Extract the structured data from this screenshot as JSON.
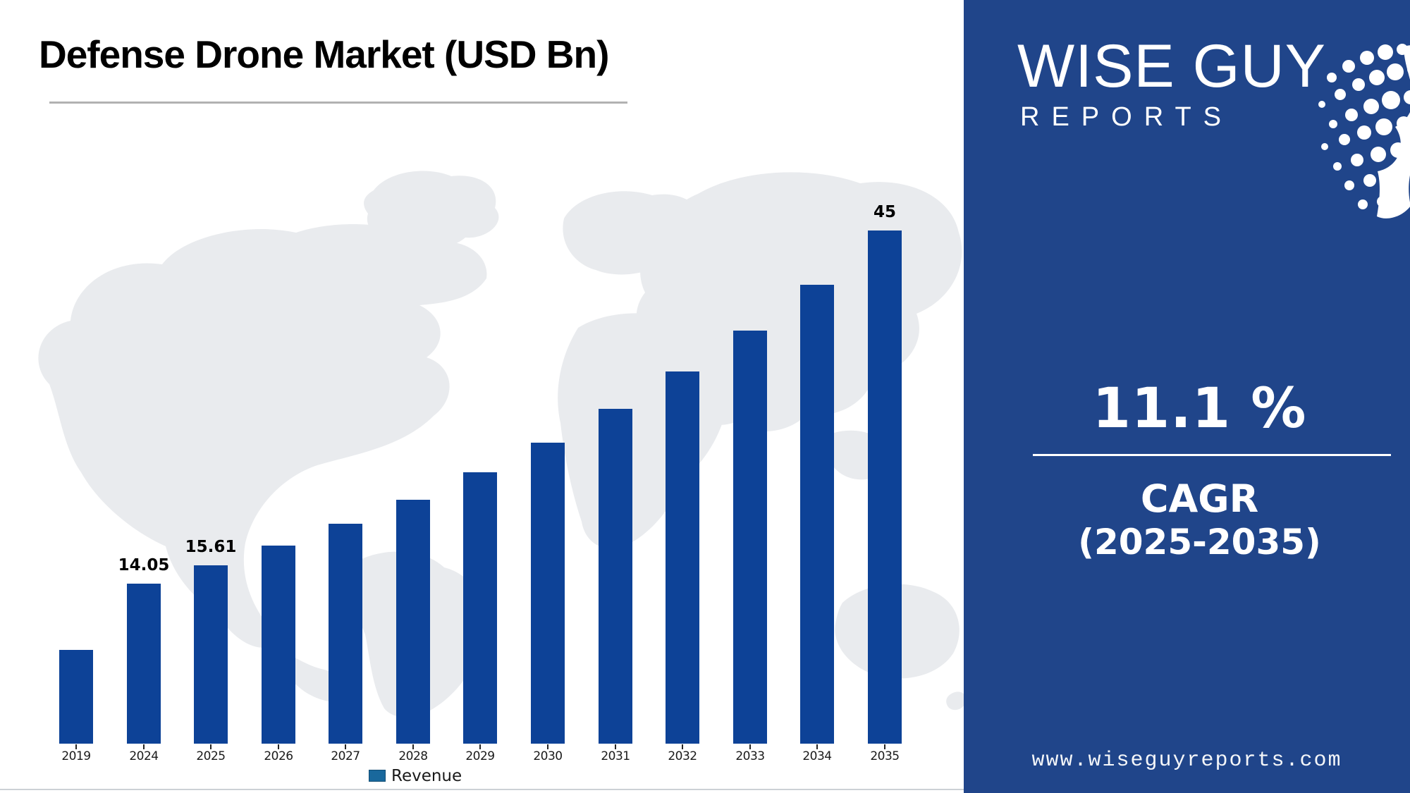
{
  "header": {
    "title": "Defense Drone Market (USD Bn)"
  },
  "brand": {
    "logo_line1": "WISE GUY",
    "logo_line2": "REPORTS",
    "logo_mark": "dotted-head-profile",
    "website": "www.wiseguyreports.com"
  },
  "metric_panel": {
    "cagr_value": "11.1 %",
    "cagr_label": "CAGR",
    "cagr_range": "(2025-2035)",
    "panel_color": "#20458a"
  },
  "chart_data": {
    "type": "bar",
    "title": "Defense Drone Market (USD Bn)",
    "categories": [
      "2019",
      "2024",
      "2025",
      "2026",
      "2027",
      "2028",
      "2029",
      "2030",
      "2031",
      "2032",
      "2033",
      "2034",
      "2035"
    ],
    "series": [
      {
        "name": "Revenue",
        "values": [
          8.2,
          14.05,
          15.61,
          17.34,
          19.27,
          21.41,
          23.78,
          26.42,
          29.35,
          32.61,
          36.23,
          40.25,
          45
        ]
      }
    ],
    "data_labels": {
      "2024": "14.05",
      "2025": "15.61",
      "2035": "45"
    },
    "xlabel": "",
    "ylabel": "",
    "ylim": [
      0,
      45
    ],
    "grid": false,
    "bar_color": "#0d4297",
    "background_decoration": "light-gray-world-map",
    "legend": {
      "label": "Revenue",
      "swatch_color": "#19689c",
      "position": "bottom"
    }
  }
}
